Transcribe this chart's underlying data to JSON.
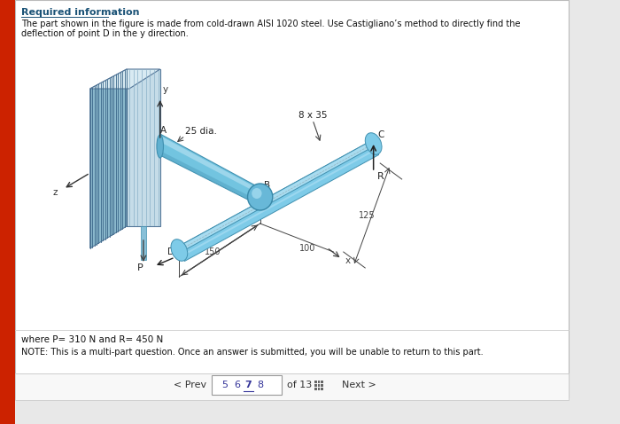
{
  "bg_color": "#e8e8e8",
  "page_bg": "#ffffff",
  "title_text": "Required information",
  "title_color": "#1a5276",
  "body_text1": "The part shown in the figure is made from cold-drawn AISI 1020 steel. Use Castigliano’s method to directly find the",
  "body_text2": "deflection of point D in the y direction.",
  "where_text": "where P= 310 N and R= 450 N",
  "note_text": "NOTE: This is a multi-part question. Once an answer is submitted, you will be unable to return to this part.",
  "nav_prev": "< Prev",
  "nav_pages": "5  6  7  8",
  "nav_of": "of 13",
  "nav_next": "Next >",
  "label_A": "A",
  "label_B": "B",
  "label_C": "C",
  "label_D": "D",
  "label_P": "P",
  "label_R": "R",
  "label_x": "x",
  "label_y": "y",
  "label_z": "z",
  "label_25dia": "25 dia.",
  "label_8x35": "8 x 35",
  "label_150": "150",
  "label_100": "100",
  "label_125": "125",
  "wall_face_color": "#c8dce8",
  "wall_hatch_color": "#5588aa",
  "wall_side_color": "#b8ccd8",
  "wall_top_color": "#d5e5ee",
  "rod_color": "#72c4e0",
  "rod_highlight": "#b0dff0",
  "rod_shadow": "#50a0c0",
  "bar_top_color": "#7ecbe8",
  "bar_side_color": "#a8dcf0",
  "bar_end_color": "#60b0d0",
  "dim_color": "#444444",
  "text_color": "#222222"
}
